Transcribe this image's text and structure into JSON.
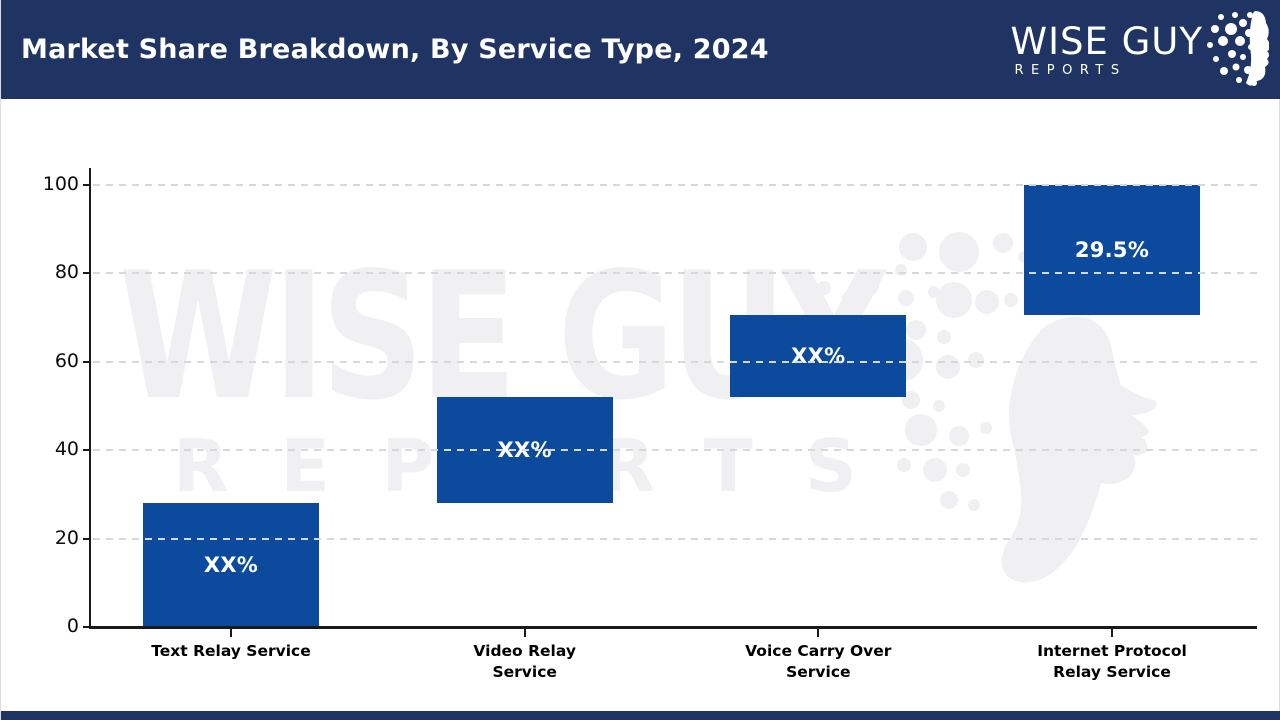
{
  "header": {
    "title": "Market Share Breakdown, By Service Type, 2024",
    "logo": {
      "line1": "WISE GUY",
      "line2": "REPORTS"
    }
  },
  "watermark": {
    "line1": "WISE GUY",
    "line2": "REPORTS"
  },
  "colors": {
    "header_navy": "#1F3463",
    "bar_blue": "#0C4A9E",
    "watermark_gray": "#F0F0F3",
    "gridline_gray": "#D8D8D8",
    "axis_black": "#1A1A1A"
  },
  "chart_data": {
    "type": "bar",
    "subtype": "floating-waterfall",
    "title": "Market Share Breakdown, By Service Type, 2024",
    "xlabel": "",
    "ylabel": "",
    "categories": [
      "Text Relay Service",
      "Video Relay Service",
      "Voice Carry Over Service",
      "Internet Protocol Relay Service"
    ],
    "category_lines": [
      [
        "Text Relay Service"
      ],
      [
        "Video Relay",
        "Service"
      ],
      [
        "Voice Carry Over",
        "Service"
      ],
      [
        "Internet Protocol",
        "Relay Service"
      ]
    ],
    "segments": [
      {
        "category": "Text Relay Service",
        "start": 0,
        "end": 28,
        "label": "XX%"
      },
      {
        "category": "Video Relay Service",
        "start": 28,
        "end": 52,
        "label": "XX%"
      },
      {
        "category": "Voice Carry Over Service",
        "start": 52,
        "end": 70.5,
        "label": "XX%"
      },
      {
        "category": "Internet Protocol Relay Service",
        "start": 70.5,
        "end": 100,
        "label": "29.5%"
      }
    ],
    "yticks": [
      0,
      20,
      40,
      60,
      80,
      100
    ],
    "ylim": [
      0,
      104
    ],
    "grid": "horizontal-dashed",
    "legend": "none",
    "bar_color": "#0C4A9E",
    "bar_label_color": "#FFFFFF"
  }
}
